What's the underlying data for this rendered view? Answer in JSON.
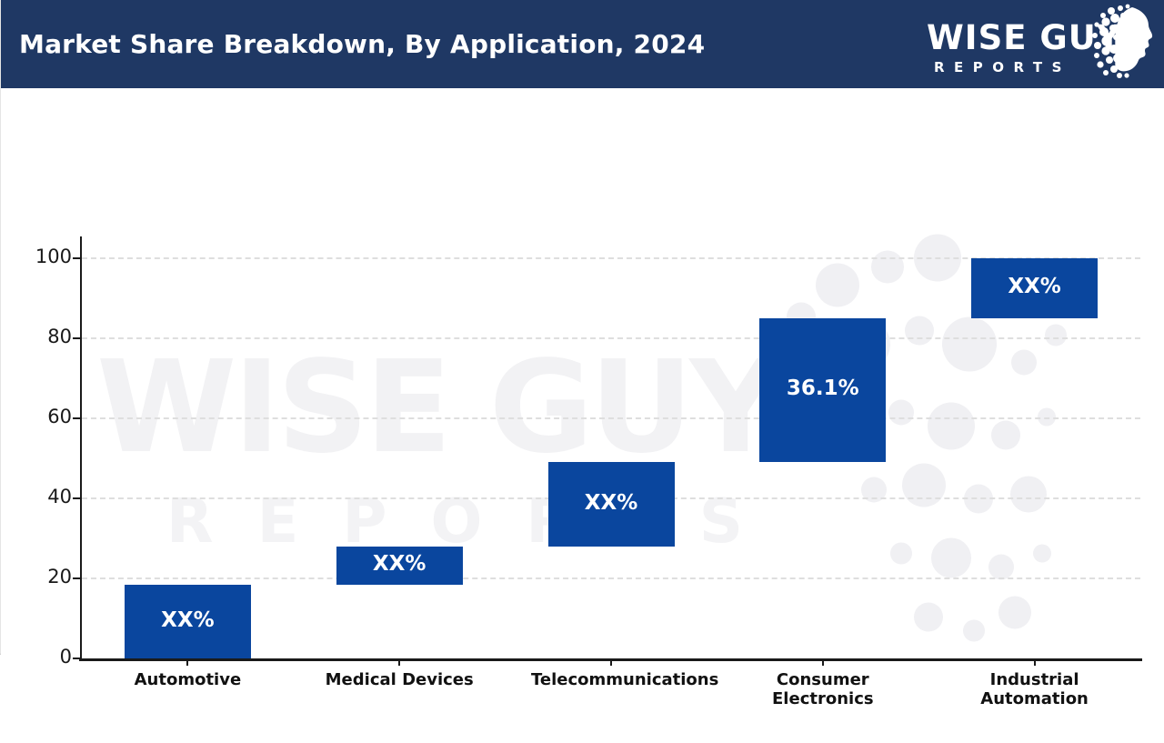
{
  "header": {
    "title": "Market Share Breakdown, By Application, 2024",
    "logo": {
      "line1": "WISE GUY",
      "line2": "REPORTS"
    }
  },
  "watermark": {
    "line1": "WISE GUY",
    "line2": "REPORTS"
  },
  "colors": {
    "header_bg": "#1f3864",
    "bar": "#0a469e",
    "bar_label": "#ffffff",
    "grid": "#dedede",
    "axis": "#1a1a1a",
    "watermark": "#f1f1f4"
  },
  "chart_data": {
    "type": "bar",
    "subtype": "waterfall-floating-bars",
    "title": "Market Share Breakdown, By Application, 2024",
    "categories": [
      "Automotive",
      "Medical Devices",
      "Telecommunications",
      "Consumer Electronics",
      "Industrial Automation"
    ],
    "segments": [
      {
        "category": "Automotive",
        "start": 0,
        "end": 18.3,
        "value": 18.3,
        "label": "XX%"
      },
      {
        "category": "Medical Devices",
        "start": 18.3,
        "end": 28.0,
        "value": 9.7,
        "label": "XX%"
      },
      {
        "category": "Telecommunications",
        "start": 28.0,
        "end": 49.0,
        "value": 21.0,
        "label": "XX%"
      },
      {
        "category": "Consumer Electronics",
        "start": 49.0,
        "end": 85.1,
        "value": 36.1,
        "label": "36.1%"
      },
      {
        "category": "Industrial Automation",
        "start": 85.1,
        "end": 100,
        "value": 14.9,
        "label": "XX%"
      }
    ],
    "xlabel": "",
    "ylabel": "",
    "ylim": [
      0,
      100
    ],
    "yticks": [
      0,
      20,
      40,
      60,
      80,
      100
    ],
    "grid": "horizontal-dashed",
    "legend": null
  }
}
